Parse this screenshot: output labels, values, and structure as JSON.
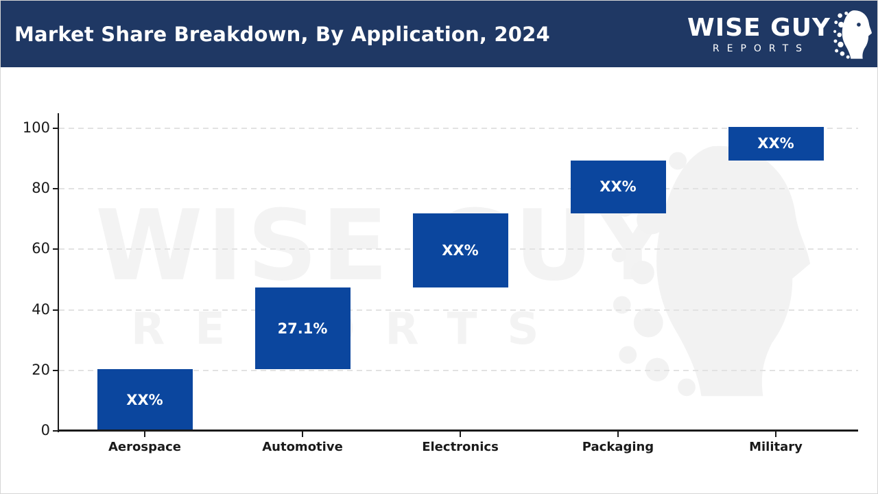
{
  "header": {
    "title": "Market Share Breakdown, By Application, 2024",
    "bg_color": "#1f3864",
    "logo": {
      "line1": "WISE GUY",
      "line2": "REPORTS"
    }
  },
  "watermark": {
    "line1": "WISE GUY",
    "line2": "REPORTS"
  },
  "chart_data": {
    "type": "bar",
    "subtype": "floating-waterfall",
    "title": "Market Share Breakdown, By Application, 2024",
    "categories": [
      "Aerospace",
      "Automotive",
      "Electronics",
      "Packaging",
      "Military"
    ],
    "bars": [
      {
        "category": "Aerospace",
        "start": 0,
        "end": 20.3,
        "label": "XX%"
      },
      {
        "category": "Automotive",
        "start": 20.3,
        "end": 47.4,
        "label": "27.1%"
      },
      {
        "category": "Electronics",
        "start": 47.4,
        "end": 71.9,
        "label": "XX%"
      },
      {
        "category": "Packaging",
        "start": 71.9,
        "end": 89.4,
        "label": "XX%"
      },
      {
        "category": "Military",
        "start": 89.4,
        "end": 100.4,
        "label": "XX%"
      }
    ],
    "ylim": [
      0,
      105
    ],
    "yticks": [
      0,
      20,
      40,
      60,
      80,
      100
    ],
    "xlabel": "",
    "ylabel": "",
    "legend": "none",
    "grid": {
      "horizontal_dashed": true,
      "color": "#e2e2e2"
    },
    "bar_color": "#0b469e",
    "axis_color": "#1a1a1a",
    "bar_label_color": "#ffffff"
  }
}
